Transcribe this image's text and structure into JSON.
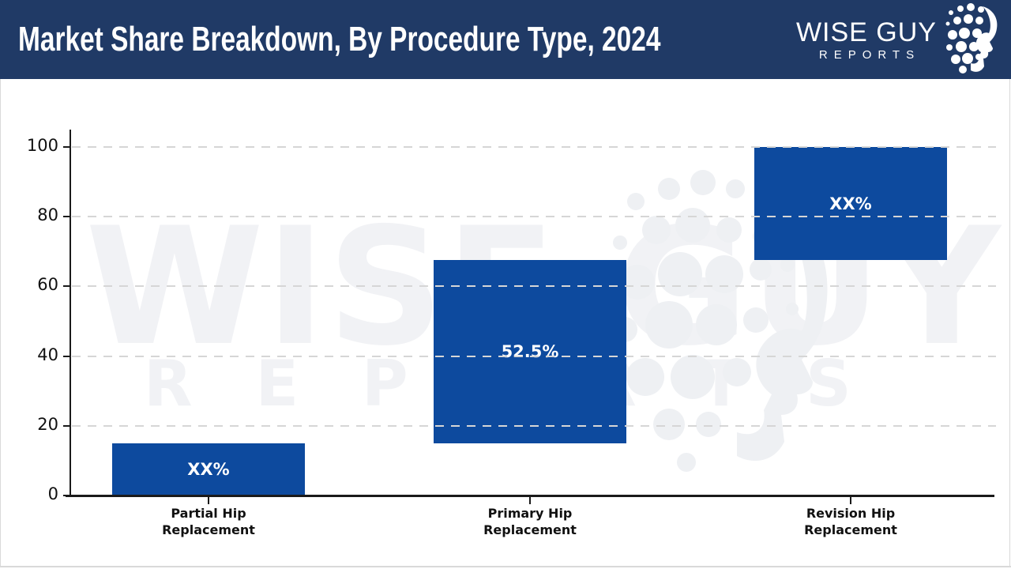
{
  "header": {
    "title": "Market Share Breakdown, By Procedure Type, 2024",
    "logo": {
      "line1": "WISE GUY",
      "line2": "REPORTS"
    }
  },
  "watermark": {
    "line1": "WISE GUY",
    "line2": "R E P O R T S"
  },
  "chart_data": {
    "type": "bar",
    "subtype": "waterfall",
    "title": "Market Share Breakdown, By Procedure Type, 2024",
    "categories": [
      "Partial Hip Replacement",
      "Primary Hip Replacement",
      "Revision Hip Replacement"
    ],
    "segments": [
      {
        "category": "Partial Hip Replacement",
        "start": 0,
        "end": 15,
        "label": "XX%"
      },
      {
        "category": "Primary Hip Replacement",
        "start": 15,
        "end": 67.5,
        "label": "52.5%"
      },
      {
        "category": "Revision Hip Replacement",
        "start": 67.5,
        "end": 100,
        "label": "XX%"
      }
    ],
    "ylim": [
      0,
      100
    ],
    "yticks": [
      0,
      20,
      40,
      60,
      80,
      100
    ],
    "grid": "horizontal-dashed",
    "legend": "none",
    "bar_color": "#0d4a9e"
  },
  "colors": {
    "header_bg": "#203a66",
    "bar": "#0d4a9e",
    "grid": "#d6d6d6",
    "axis": "#1a1a1a",
    "watermark": "#f1f2f5"
  }
}
